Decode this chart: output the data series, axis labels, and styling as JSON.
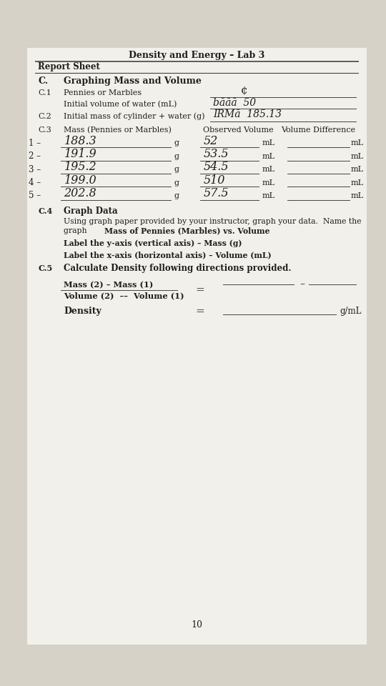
{
  "title": "Density and Energy – Lab 3",
  "subtitle": "Report Sheet",
  "section_c": "C.",
  "section_c_title": "Graphing Mass and Volume",
  "c1_label": "C.1",
  "c1_text": "Pennies or Marbles",
  "c1b_text": "Initial volume of water (mL)",
  "c2_label": "C.2",
  "c2_text": "Initial mass of cylinder + water (g)",
  "c3_label": "C.3",
  "c3_col1": "Mass (Pennies or Marbles)",
  "c3_col2": "Observed Volume",
  "c3_col3": "Volume Difference",
  "rows": [
    {
      "num": "1 –",
      "mass": "188.3",
      "mass_unit": "g",
      "vol": "52",
      "vol_unit": "mL",
      "diff_unit": "mL"
    },
    {
      "num": "2 –",
      "mass": "191.9",
      "mass_unit": "g",
      "vol": "53.5",
      "vol_unit": "mL",
      "diff_unit": "mL"
    },
    {
      "num": "3 –",
      "mass": "195.2",
      "mass_unit": "g",
      "vol": "54.5",
      "vol_unit": "mL",
      "diff_unit": "mL"
    },
    {
      "num": "4 –",
      "mass": "199.0",
      "mass_unit": "g",
      "vol": "510",
      "vol_unit": "mL",
      "diff_unit": "mL"
    },
    {
      "num": "5 –",
      "mass": "202.8",
      "mass_unit": "g",
      "vol": "57.5",
      "vol_unit": "mL",
      "diff_unit": "mL"
    }
  ],
  "c4_label": "C.4",
  "c4_title": "Graph Data",
  "c4_text1": "Using graph paper provided by your instructor, graph your data.  Name the",
  "c4_text3": "Label the y-axis (vertical axis) – Mass (g)",
  "c4_text4": "Label the x-axis (horizontal axis) – Volume (mL)",
  "c5_label": "C.5",
  "c5_title": "Calculate Density following directions provided.",
  "density_num": "Mass (2) – Mass (1)",
  "density_den": "Volume (2)  ––  Volume (1)",
  "density_label": "Density",
  "density_unit": "g/mL",
  "page_num": "10",
  "bg_color": "#d6d2c8",
  "paper_color": "#f2f0ea",
  "text_color": "#1e1e1e",
  "line_color": "#444444"
}
